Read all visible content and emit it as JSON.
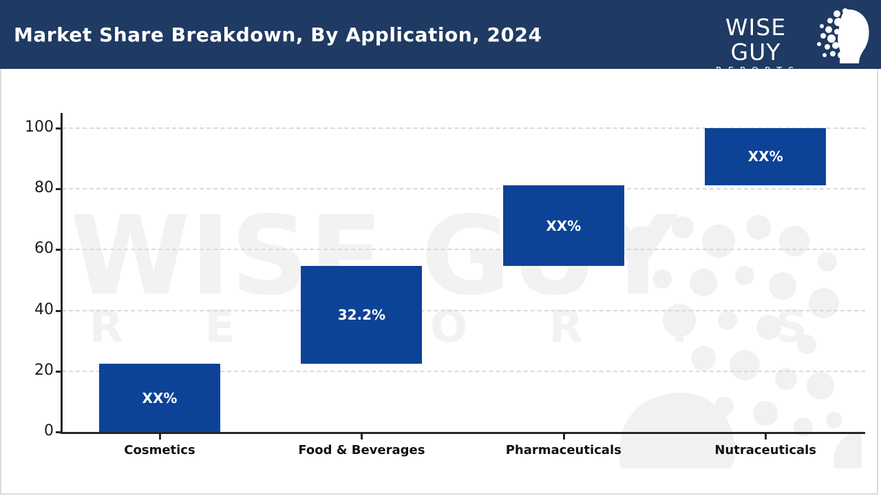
{
  "header": {
    "title": "Market Share Breakdown, By Application, 2024",
    "logo": {
      "line1": "WISE GUY",
      "line2": "REPORTS"
    }
  },
  "watermark": {
    "line1": "WISE GUY",
    "line2": "R E P O R T S"
  },
  "chart_data": {
    "type": "waterfall",
    "title": "Market Share Breakdown, By Application, 2024",
    "categories": [
      "Cosmetics",
      "Food & Beverages",
      "Pharmaceuticals",
      "Nutraceuticals"
    ],
    "values": [
      22.4,
      32.2,
      26.6,
      18.8
    ],
    "labels": [
      "XX%",
      "32.2%",
      "XX%",
      "XX%"
    ],
    "yticks": [
      0,
      20,
      40,
      60,
      80,
      100
    ],
    "ylim": [
      0,
      105
    ],
    "xlabel": "",
    "ylabel": "",
    "grid": "horizontal-dashed",
    "legend": "none",
    "bar_color": "#0D4396",
    "bar_label_color": "#ffffff",
    "grid_color": "#d9d9d9",
    "axis_color": "#262626"
  }
}
